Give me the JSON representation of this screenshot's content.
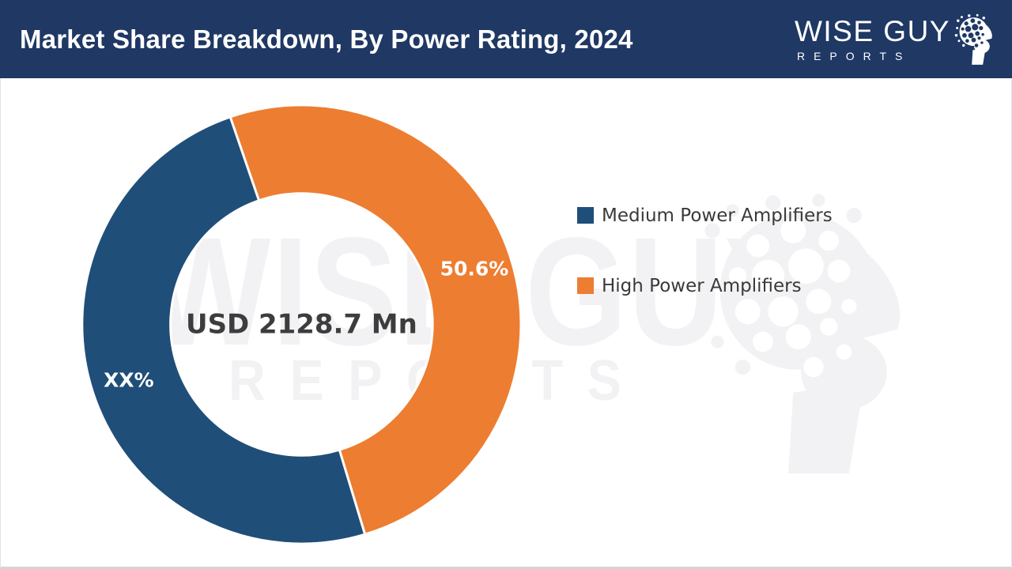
{
  "header": {
    "title": "Market Share Breakdown, By Power Rating, 2024",
    "logo": {
      "name": "WISE GUY",
      "subtitle": "REPORTS"
    }
  },
  "watermark": {
    "line1": "WISE GUY",
    "line2": "REPORTS"
  },
  "chart_data": {
    "type": "pie",
    "subtype": "donut",
    "title": "Market Share Breakdown, By Power Rating, 2024",
    "center_label": "USD 2128.7 Mn",
    "start_angle_deg": 163.2,
    "legend_position": "right",
    "series": [
      {
        "name": "Medium Power Amplifiers",
        "value_pct": 49.4,
        "shown_label": "XX%",
        "color": "#1f4e79"
      },
      {
        "name": "High Power Amplifiers",
        "value_pct": 50.6,
        "shown_label": "50.6%",
        "color": "#ed7d31"
      }
    ]
  },
  "colors": {
    "header_bg": "#1f3864",
    "medium_power_blue": "#1f4e79",
    "high_power_orange": "#ed7d31",
    "center_text": "#3d3d3d",
    "legend_text": "#3a3a3a",
    "watermark": "#f2f2f4"
  }
}
